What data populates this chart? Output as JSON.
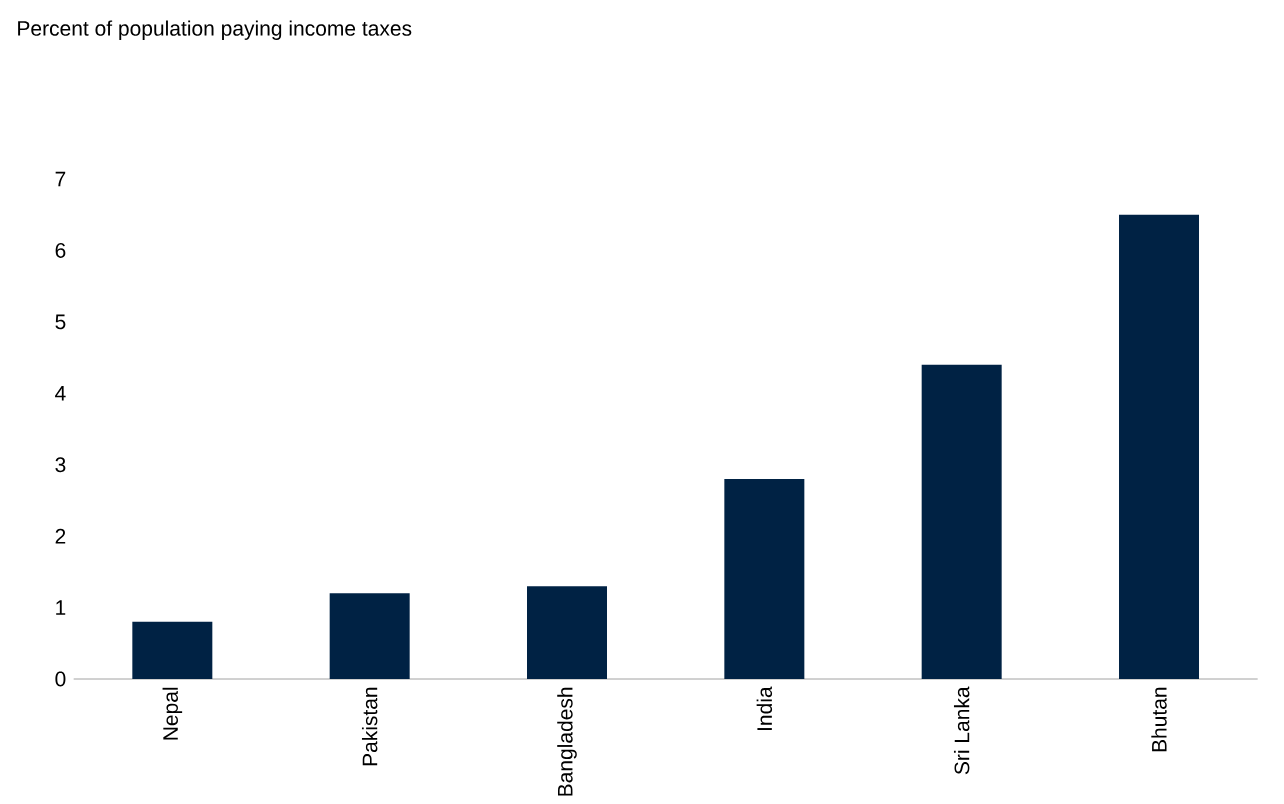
{
  "chart_data": {
    "type": "bar",
    "title": "Percent  of population paying income taxes",
    "categories": [
      "Nepal",
      "Pakistan",
      "Bangladesh",
      "India",
      "Sri Lanka",
      "Bhutan"
    ],
    "values": [
      0.8,
      1.2,
      1.3,
      2.8,
      4.4,
      6.5
    ],
    "color": "#002244",
    "ylim": [
      0,
      7
    ],
    "yticks": [
      0,
      1,
      2,
      3,
      4,
      5,
      6,
      7
    ]
  }
}
